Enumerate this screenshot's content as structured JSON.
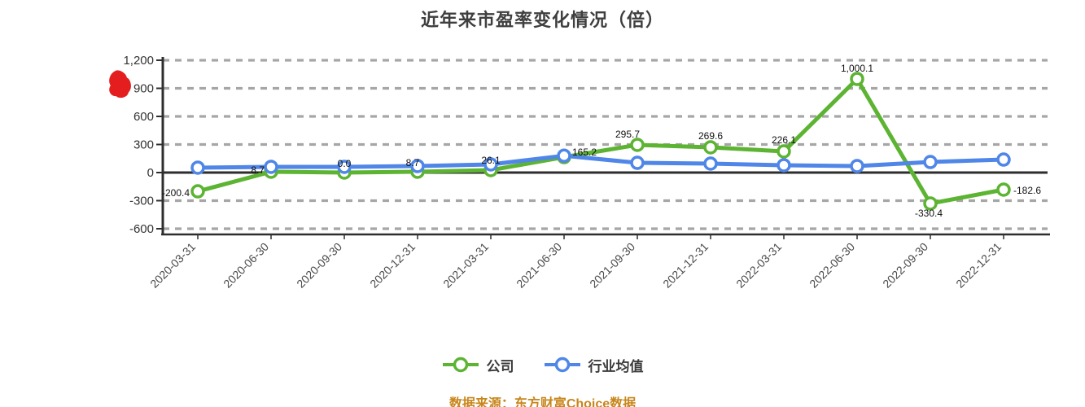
{
  "chart": {
    "title": "近年来市盈率变化情况（倍）",
    "source_note": "数据来源：东方财富Choice数据"
  },
  "legend": {
    "items": [
      {
        "label": "公司",
        "color": "#5cb432"
      },
      {
        "label": "行业均值",
        "color": "#4f86e8"
      }
    ]
  },
  "watermark": {
    "color": "#e41e1e"
  },
  "chart_data": {
    "type": "line",
    "title": "近年来市盈率变化情况（倍）",
    "xlabel": "",
    "ylabel": "",
    "ylim": [
      -600,
      1200
    ],
    "grid": "dashed horizontal gridlines, solid darker zero line",
    "legend_position": "bottom",
    "y_ticks": [
      {
        "value": 1200,
        "label": "1,200"
      },
      {
        "value": 900,
        "label": "900"
      },
      {
        "value": 600,
        "label": "600"
      },
      {
        "value": 300,
        "label": "300"
      },
      {
        "value": 0,
        "label": "0"
      },
      {
        "value": -300,
        "label": "-300"
      },
      {
        "value": -600,
        "label": "-600"
      }
    ],
    "categories": [
      "2020-03-31",
      "2020-06-30",
      "2020-09-30",
      "2020-12-31",
      "2021-03-31",
      "2021-06-30",
      "2021-09-30",
      "2021-12-31",
      "2022-03-31",
      "2022-06-30",
      "2022-09-30",
      "2022-12-31"
    ],
    "series": [
      {
        "name": "公司",
        "color": "#5cb432",
        "values": [
          -200.4,
          8.7,
          0.0,
          8.7,
          26.1,
          165.2,
          295.7,
          269.6,
          226.1,
          1000.1,
          -330.4,
          -182.6
        ],
        "labels": [
          "-200.4",
          "8.7",
          "0.0",
          "8.7",
          "26.1",
          "165.2",
          "295.7",
          "269.6",
          "226.1",
          "1,000.1",
          "-330.4",
          "-182.6"
        ],
        "label_anchor": [
          "end",
          "end",
          "middle",
          "middle",
          "middle",
          "start",
          "middle",
          "middle",
          "middle",
          "middle",
          "middle",
          "start"
        ],
        "label_dx": [
          -10,
          -8,
          0,
          -6,
          0,
          10,
          -12,
          0,
          0,
          0,
          -2,
          12
        ],
        "label_dy": [
          6,
          2,
          -7,
          -7,
          -8,
          -2,
          -9,
          -10,
          -10,
          -9,
          16,
          5
        ]
      },
      {
        "name": "行业均值",
        "color": "#4f86e8",
        "values": [
          52.2,
          60.9,
          60.9,
          69.6,
          87.0,
          180.0,
          104.3,
          95.7,
          78.3,
          69.6,
          113.0,
          139.1
        ],
        "labels": null
      }
    ]
  }
}
